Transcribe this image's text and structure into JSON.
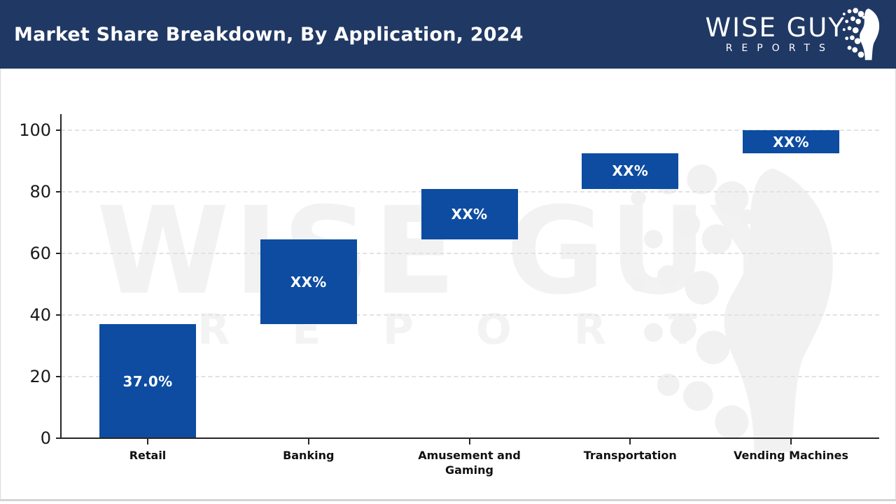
{
  "header": {
    "title": "Market Share Breakdown, By Application, 2024",
    "logo": {
      "line1": "WISE GUY",
      "line2": "REPORTS"
    }
  },
  "watermark": {
    "line1": "WISE GUY",
    "line2": "REPORTS"
  },
  "chart_data": {
    "type": "bar",
    "subtype": "waterfall",
    "title": "Market Share Breakdown, By Application, 2024",
    "xlabel": "",
    "ylabel": "",
    "ylim": [
      0,
      105
    ],
    "yticks": [
      0,
      20,
      40,
      60,
      80,
      100
    ],
    "grid": "horizontal-dashed",
    "legend": false,
    "bar_color": "#0D4CA1",
    "label_color": "#ffffff",
    "categories": [
      "Retail",
      "Banking",
      "Amusement and Gaming",
      "Transportation",
      "Vending Machines"
    ],
    "bars": [
      {
        "category": "Retail",
        "start": 0,
        "end": 37,
        "value": 37,
        "label": "37.0%"
      },
      {
        "category": "Banking",
        "start": 37,
        "end": 64.5,
        "value": 27.5,
        "label": "XX%"
      },
      {
        "category": "Amusement and Gaming",
        "start": 64.5,
        "end": 81,
        "value": 16.5,
        "label": "XX%"
      },
      {
        "category": "Transportation",
        "start": 81,
        "end": 92.5,
        "value": 11.5,
        "label": "XX%"
      },
      {
        "category": "Vending Machines",
        "start": 92.5,
        "end": 100,
        "value": 7.5,
        "label": "XX%"
      }
    ]
  },
  "colors": {
    "header_bg": "#203864",
    "bar": "#0D4CA1",
    "axis": "#262626",
    "grid": "#e2e2e2",
    "watermark": "#f2f2f2"
  }
}
